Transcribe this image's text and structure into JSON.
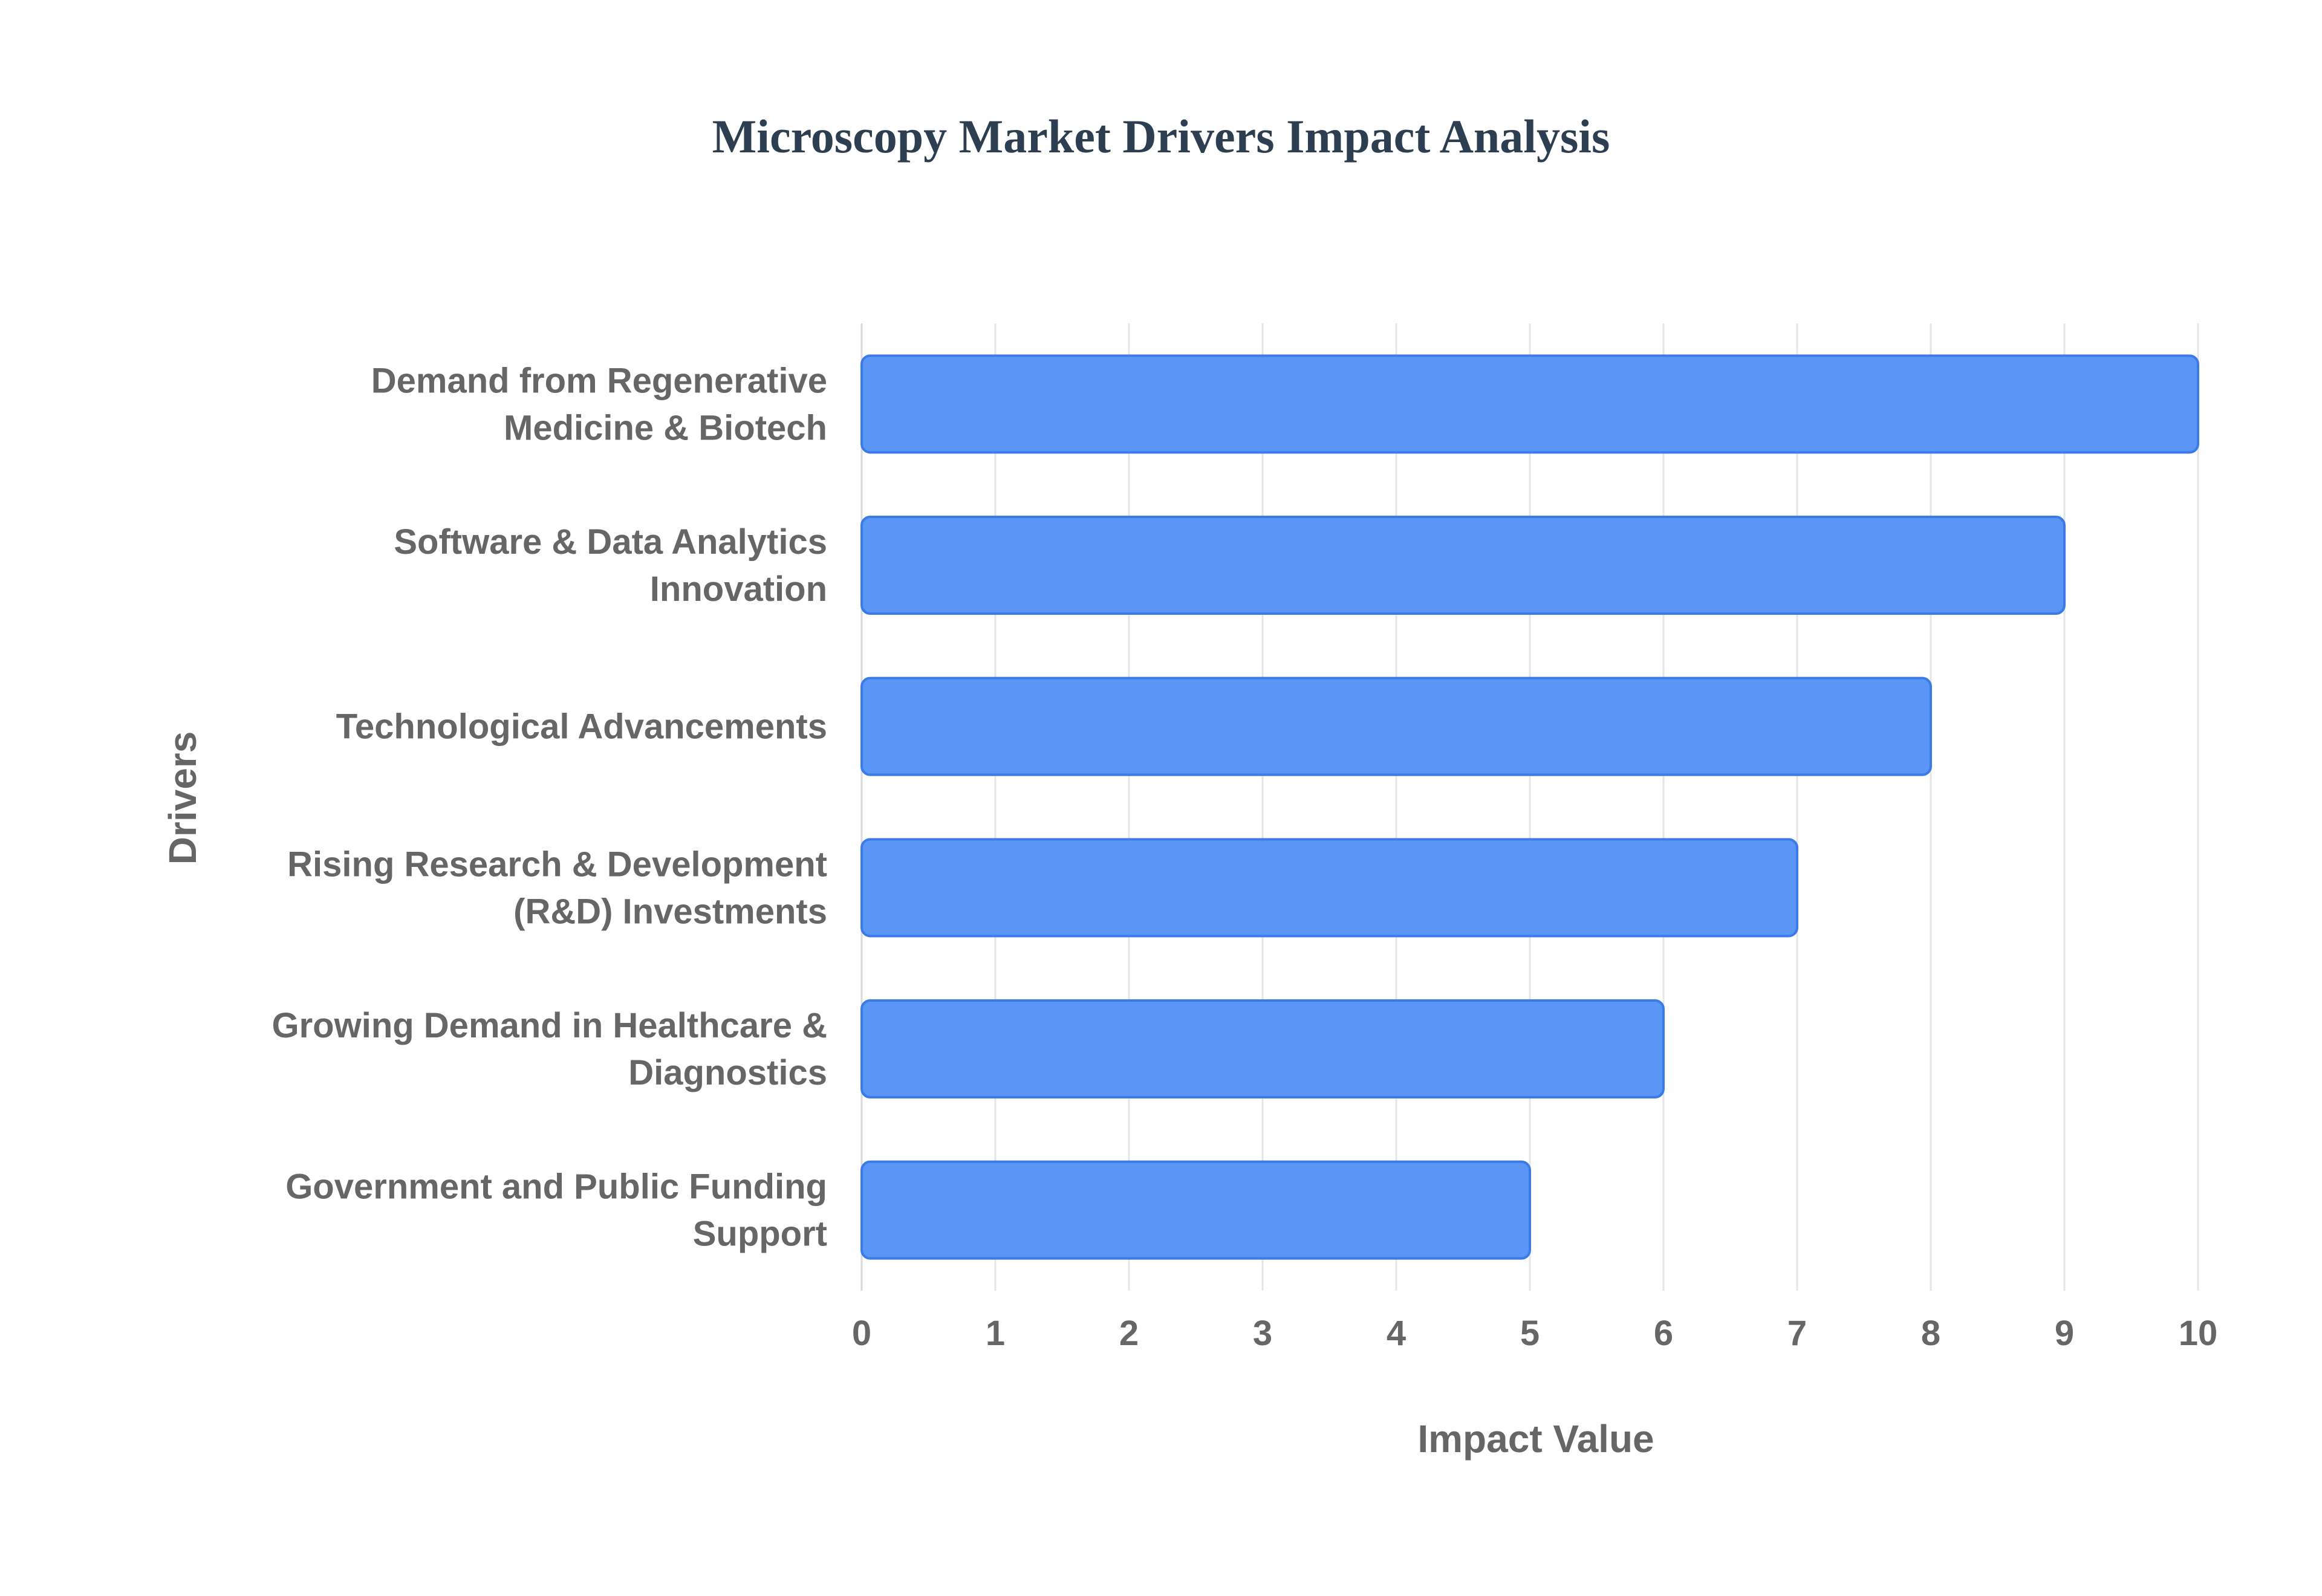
{
  "chart_data": {
    "type": "bar",
    "orientation": "horizontal",
    "title": "Microscopy Market Drivers Impact Analysis",
    "xlabel": "Impact Value",
    "ylabel": "Drivers",
    "xlim": [
      0,
      10
    ],
    "xticks": [
      "0",
      "1",
      "2",
      "3",
      "4",
      "5",
      "6",
      "7",
      "8",
      "9",
      "10"
    ],
    "grid": true,
    "legend": "none",
    "categories": [
      [
        "Demand from Regenerative",
        "Medicine & Biotech"
      ],
      [
        "Software & Data Analytics",
        "Innovation"
      ],
      [
        "Technological Advancements"
      ],
      [
        "Rising Research & Development",
        "(R&D) Investments"
      ],
      [
        "Growing Demand in Healthcare &",
        "Diagnostics"
      ],
      [
        "Government and Public Funding",
        "Support"
      ]
    ],
    "values": [
      10,
      9,
      8,
      7,
      6,
      5
    ],
    "colors": {
      "bar_fill": "#5b95f5",
      "bar_stroke": "#3b7be8",
      "title": "#2c3e50",
      "text": "#666666",
      "grid": "#e5e5e5"
    }
  }
}
